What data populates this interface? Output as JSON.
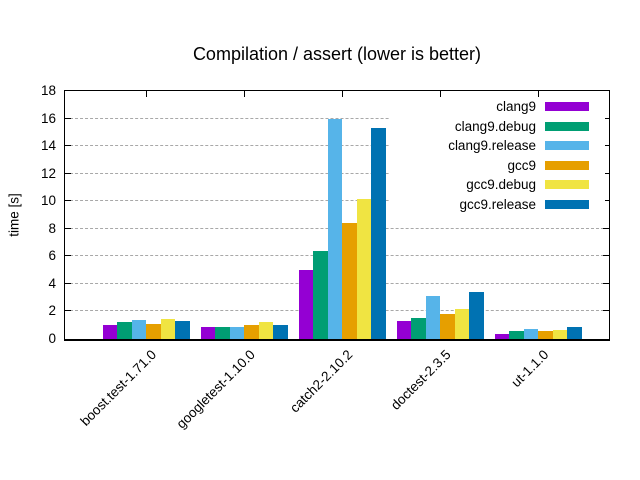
{
  "chart_data": {
    "type": "bar",
    "title": "Compilation / assert (lower is better)",
    "ylabel": "time [s]",
    "xlabel": "",
    "ylim": [
      0,
      18
    ],
    "ytick_step": 2,
    "yticks": [
      0,
      2,
      4,
      6,
      8,
      10,
      12,
      14,
      16,
      18
    ],
    "grid": "horizontal dashed",
    "legend_position": "top-right inside",
    "categories": [
      "boost.test-1.71.0",
      "googletest-1.10.0",
      "catch2-2.10.2",
      "doctest-2.3.5",
      "ut-1.1.0"
    ],
    "series": [
      {
        "name": "clang9",
        "color": "#9400d3",
        "values": [
          1.0,
          0.85,
          5.0,
          1.3,
          0.4
        ]
      },
      {
        "name": "clang9.debug",
        "color": "#009e73",
        "values": [
          1.2,
          0.9,
          6.4,
          1.5,
          0.55
        ]
      },
      {
        "name": "clang9.release",
        "color": "#56b4e9",
        "values": [
          1.35,
          0.9,
          16.0,
          3.1,
          0.7
        ]
      },
      {
        "name": "gcc9",
        "color": "#e69f00",
        "values": [
          1.1,
          1.0,
          8.4,
          1.8,
          0.55
        ]
      },
      {
        "name": "gcc9.debug",
        "color": "#f0e442",
        "values": [
          1.45,
          1.2,
          10.15,
          2.2,
          0.65
        ]
      },
      {
        "name": "gcc9.release",
        "color": "#0072b2",
        "values": [
          1.3,
          1.0,
          15.35,
          3.4,
          0.85
        ]
      }
    ]
  }
}
